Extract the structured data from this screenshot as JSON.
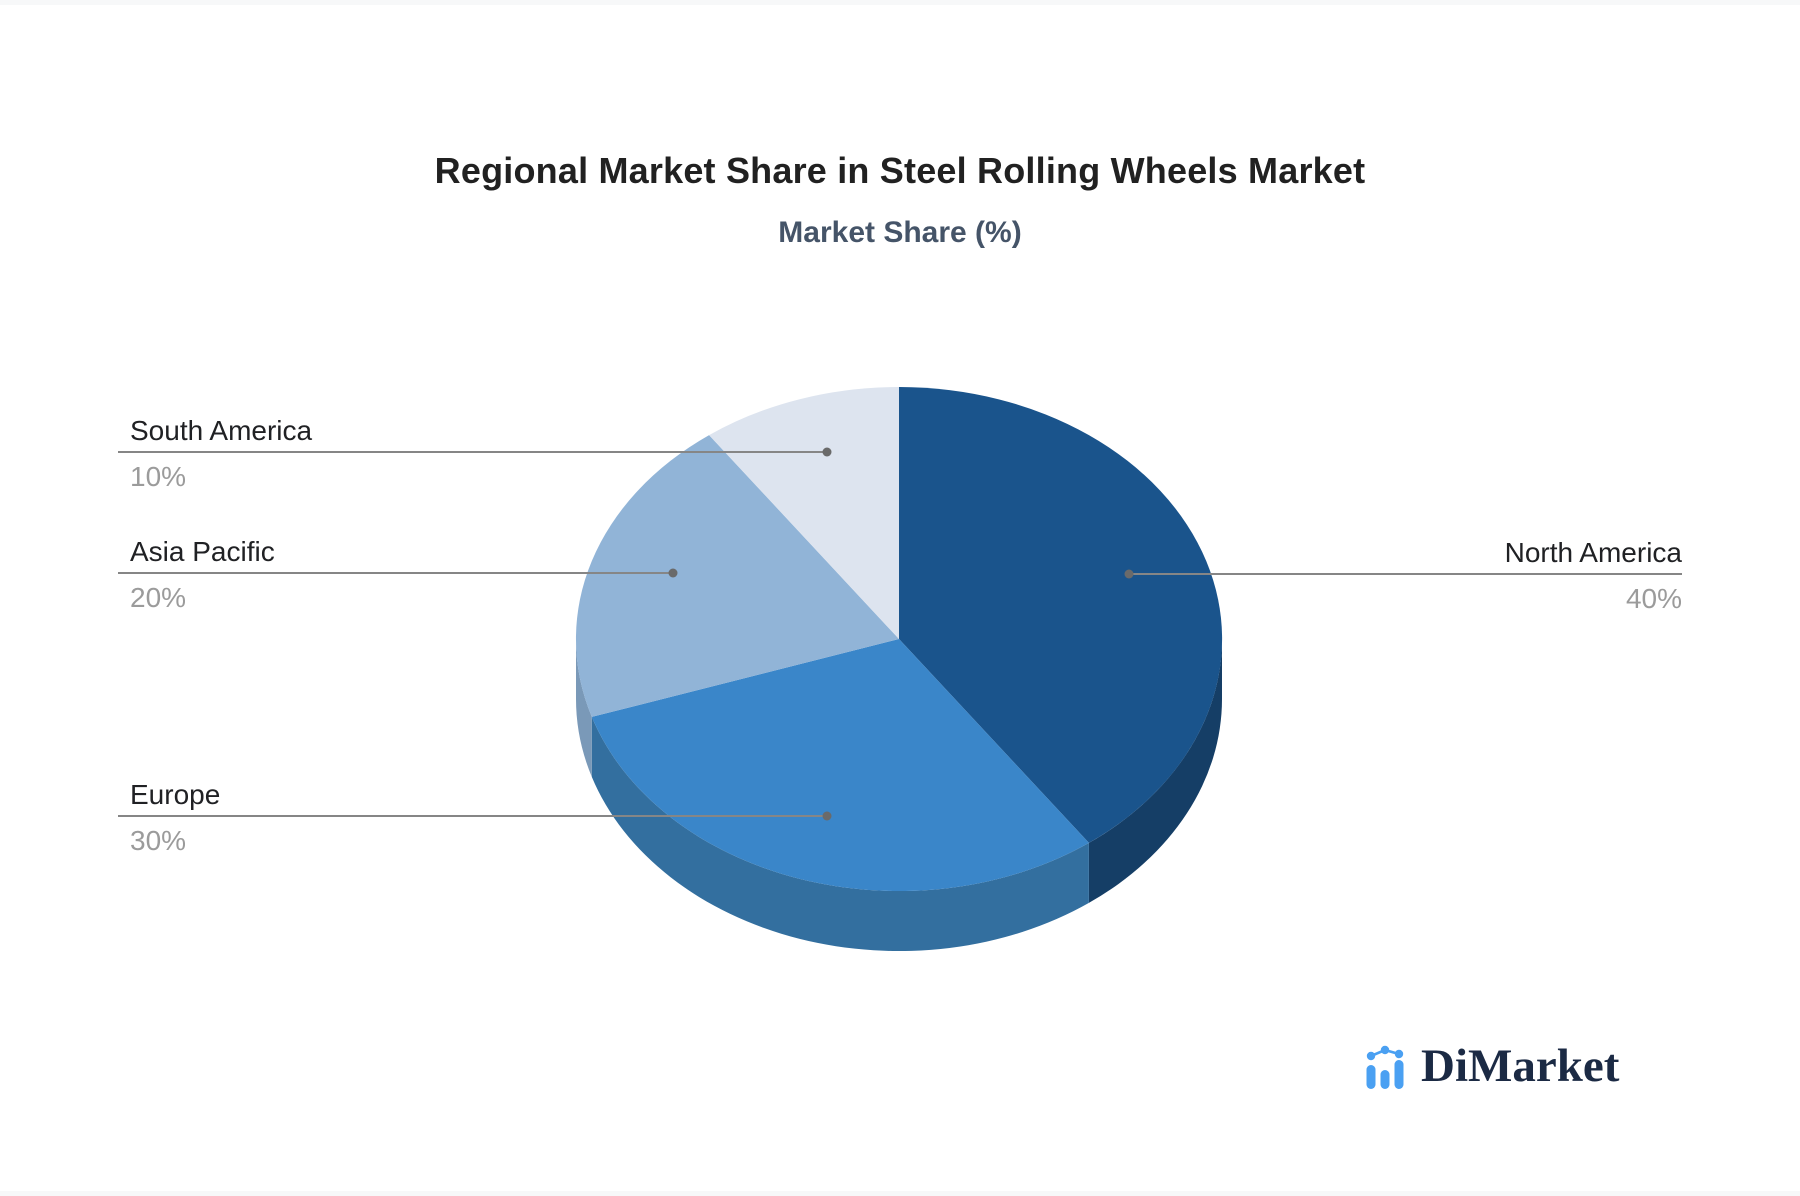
{
  "title": "Regional Market Share in Steel Rolling Wheels Market",
  "subtitle": "Market Share (%)",
  "brand": {
    "name": "DiMarket"
  },
  "colors": {
    "background": "#ffffff",
    "title_text": "#212121",
    "subtitle_text": "#455468",
    "label_text": "#202124",
    "percent_text": "#9b9b9b",
    "leader_line": "#868686",
    "leader_dot": "#6a6a6a",
    "logo_icon": "#4aa0f2",
    "logo_text": "#1b2a44"
  },
  "chart_data": {
    "type": "pie",
    "style": "3d",
    "title": "Regional Market Share in Steel Rolling Wheels Market",
    "subtitle": "Market Share (%)",
    "unit": "%",
    "start_angle": "12 o'clock",
    "direction": "clockwise",
    "legend": "callout-labels",
    "slices": [
      {
        "label": "North America",
        "value": 40,
        "pct": "40%",
        "color": "#1a548c",
        "side_color": "#153e66"
      },
      {
        "label": "Europe",
        "value": 30,
        "pct": "30%",
        "color": "#3a86c9",
        "side_color": "#336f9f"
      },
      {
        "label": "Asia Pacific",
        "value": 20,
        "pct": "20%",
        "color": "#91b4d7",
        "side_color": "#7a99b8"
      },
      {
        "label": "South America",
        "value": 10,
        "pct": "10%",
        "color": "#dde4ef",
        "side_color": "#c3ccdc"
      }
    ]
  }
}
